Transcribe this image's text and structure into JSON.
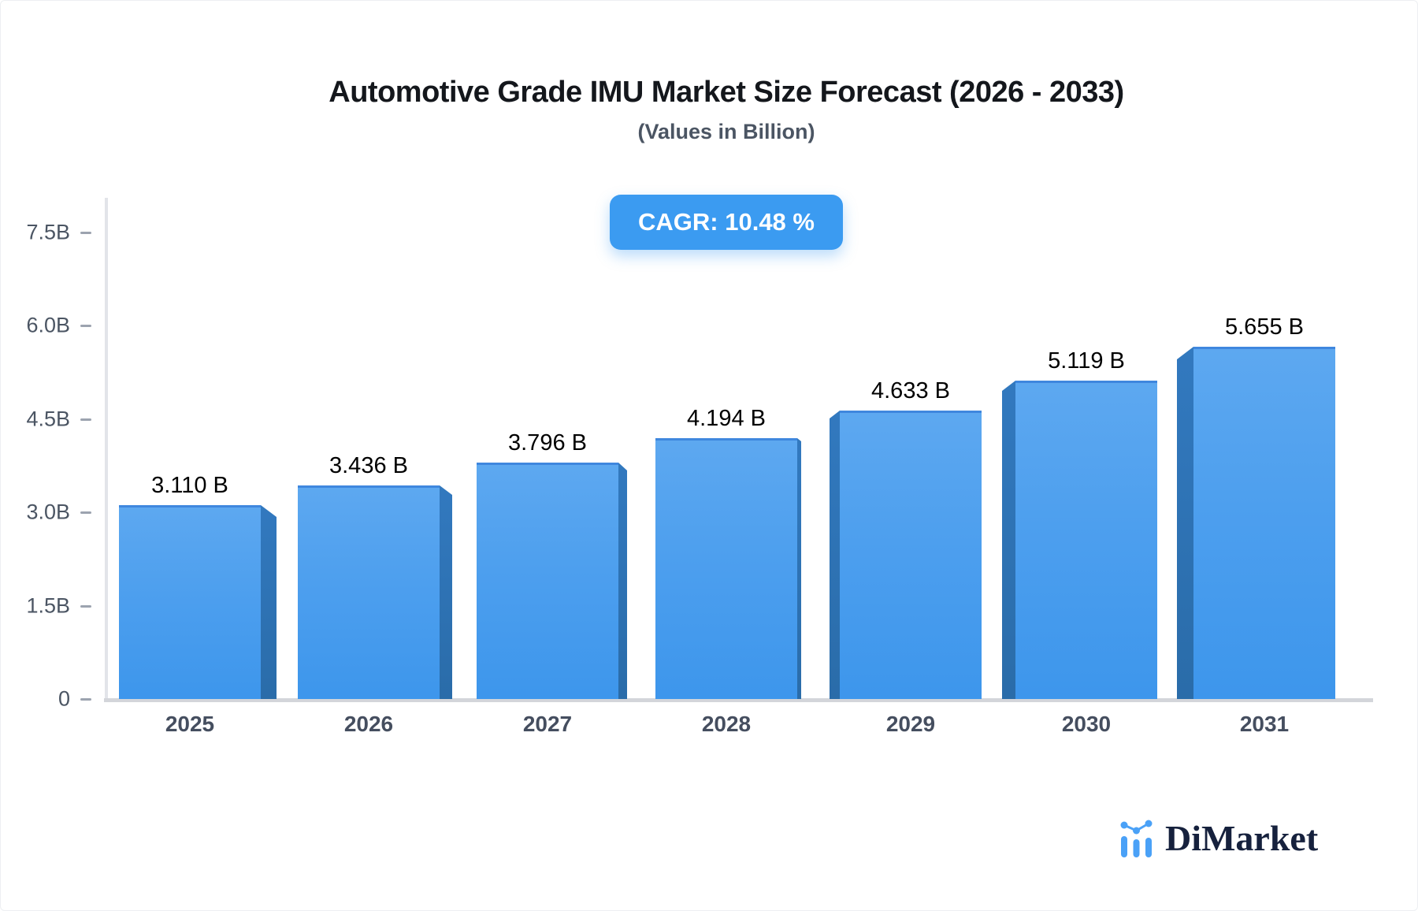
{
  "header": {
    "title": "Automotive Grade IMU Market Size Forecast (2026 - 2033)",
    "subtitle": "(Values in Billion)",
    "cagr_badge": "CAGR: 10.48 %"
  },
  "chart_data": {
    "type": "bar",
    "title": "Automotive Grade IMU Market Size Forecast (2026 - 2033)",
    "subtitle": "(Values in Billion)",
    "categories": [
      "2025",
      "2026",
      "2027",
      "2028",
      "2029",
      "2030",
      "2031"
    ],
    "values": [
      3.11,
      3.436,
      3.796,
      4.194,
      4.633,
      5.119,
      5.655
    ],
    "value_labels": [
      "3.110 B",
      "3.436 B",
      "3.796 B",
      "4.194 B",
      "4.633 B",
      "5.119 B",
      "5.655 B"
    ],
    "cagr_percent": 10.48,
    "y_axis": {
      "ticks": [
        "7.5B",
        "6.0B",
        "4.5B",
        "3.0B",
        "1.5B",
        "0"
      ],
      "tick_values": [
        7.5,
        6.0,
        4.5,
        3.0,
        1.5,
        0
      ]
    },
    "ylim": [
      0,
      7.5
    ],
    "xlabel": "",
    "ylabel": "",
    "grid": false,
    "legend": "none",
    "bar_style": "3d-blue"
  },
  "footer": {
    "brand": "DiMarket",
    "logo_icon": "bar-chart-icon"
  },
  "colors": {
    "badge_bg": "#3b9bf1",
    "bar_face_top": "#5da8f0",
    "bar_face_bottom": "#3d96ec",
    "bar_side": "#2e74b5",
    "bar_top_edge": "#3f87de",
    "axis_line": "#e2e4e9",
    "baseline": "#d3d5da",
    "tick_dash": "#9ca3af",
    "y_label_text": "#4b5563",
    "x_label_text": "#454e5f",
    "value_label_text": "#000000",
    "title_text": "#14171c",
    "subtitle_text": "#4b5563",
    "brand_navy": "#16213d",
    "brand_blue": "#4aa1f7"
  }
}
